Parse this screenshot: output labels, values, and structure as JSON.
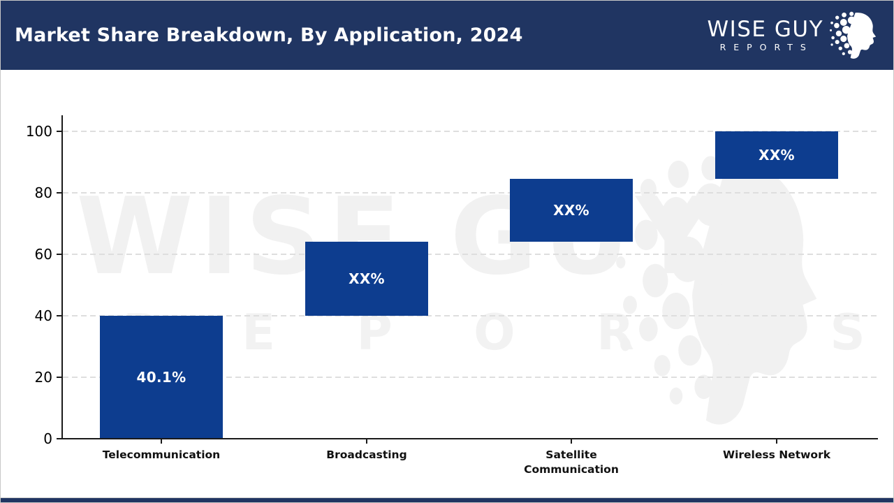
{
  "header": {
    "title": "Market Share Breakdown, By Application, 2024",
    "logo": {
      "line1": "WISE GUY",
      "line2": "REPORTS"
    }
  },
  "watermark": {
    "line1": "WISE GUY",
    "line2": "R E P O R T S"
  },
  "colors": {
    "header_bg": "#203562",
    "footer_bg": "#203562",
    "bar": "#0d3d8f",
    "bar_label": "#ffffff",
    "axis": "#1a1a1a",
    "grid": "#dedede",
    "watermark": "#f1f1f1"
  },
  "chart_data": {
    "type": "bar",
    "subtype": "waterfall",
    "title": "Market Share Breakdown, By Application, 2024",
    "categories": [
      "Telecommunication",
      "Broadcasting",
      "Satellite Communication",
      "Wireless Network"
    ],
    "segments": [
      {
        "category": "Telecommunication",
        "start": 0,
        "end": 40.1,
        "label": "40.1%"
      },
      {
        "category": "Broadcasting",
        "start": 40.1,
        "end": 64.2,
        "label": "XX%"
      },
      {
        "category": "Satellite Communication",
        "start": 64.2,
        "end": 84.5,
        "label": "XX%"
      },
      {
        "category": "Wireless Network",
        "start": 84.5,
        "end": 100,
        "label": "XX%"
      }
    ],
    "ylim": [
      0,
      100
    ],
    "yticks": [
      0,
      20,
      40,
      60,
      80,
      100
    ],
    "xlabel": "",
    "ylabel": "",
    "grid": "horizontal-dashed",
    "legend": false
  }
}
